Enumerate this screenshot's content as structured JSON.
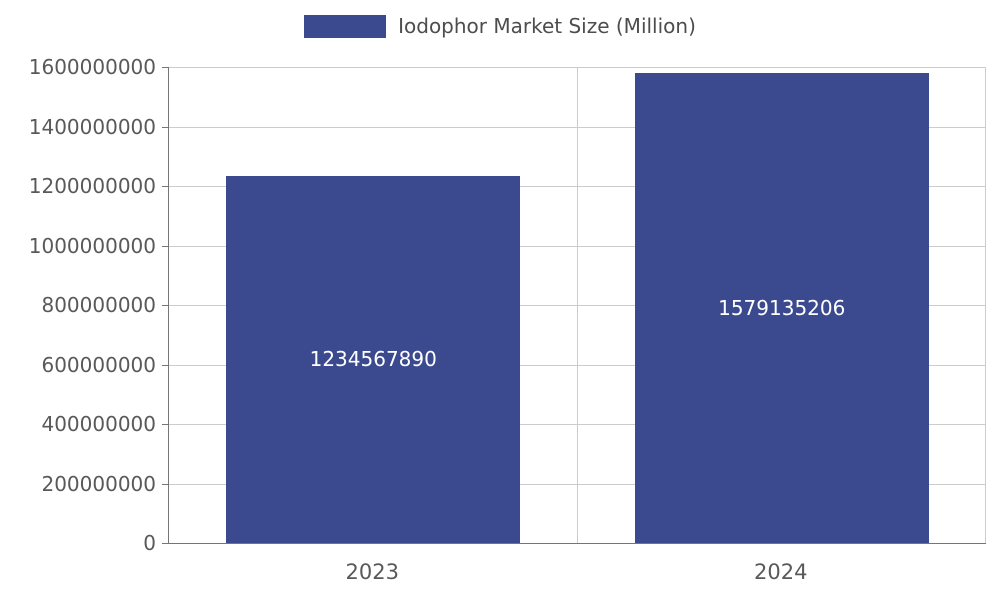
{
  "chart_data": {
    "type": "bar",
    "title": "Iodophor Market Size (Million)",
    "categories": [
      "2023",
      "2024"
    ],
    "series": [
      {
        "name": "Iodophor Market Size (Million)",
        "values": [
          1234567890,
          1579135206
        ],
        "value_labels": [
          "1234567890",
          "1579135206"
        ]
      }
    ],
    "xlabel": "",
    "ylabel": "",
    "ylim": [
      0,
      1600000000
    ],
    "ytick_step": 200000000,
    "yticks": [
      "0",
      "200000000",
      "400000000",
      "600000000",
      "800000000",
      "1000000000",
      "1200000000",
      "1400000000",
      "1600000000"
    ],
    "grid": true,
    "legend_position": "top",
    "colors": {
      "bar": "#3b4a8e",
      "bar_label": "#ffffff",
      "axis_line": "#757575",
      "gridline": "#cccccc",
      "tick_text": "#595959",
      "legend_text": "#4d4d4d",
      "background": "#ffffff"
    }
  }
}
